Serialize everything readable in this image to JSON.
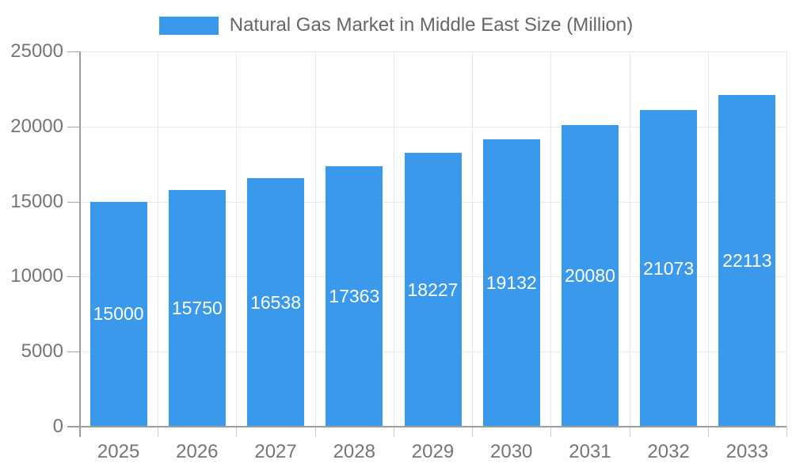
{
  "chart_data": {
    "type": "bar",
    "title": "Natural Gas Market in Middle East Size (Million)",
    "legend": {
      "position": "top",
      "label": "Natural Gas Market in Middle East Size (Million)"
    },
    "categories": [
      "2025",
      "2026",
      "2027",
      "2028",
      "2029",
      "2030",
      "2031",
      "2032",
      "2033"
    ],
    "series": [
      {
        "name": "Natural Gas Market in Middle East Size (Million)",
        "values": [
          15000,
          15750,
          16538,
          17363,
          18227,
          19132,
          20080,
          21073,
          22113
        ]
      }
    ],
    "xlabel": "",
    "ylabel": "",
    "ylim": [
      0,
      25000
    ],
    "yticks": [
      0,
      5000,
      10000,
      15000,
      20000,
      25000
    ],
    "grid": true,
    "bar_value_labels_shown": true,
    "colors": {
      "bar": "#3B99EC",
      "grid": "#E8E8E8",
      "axis": "#9E9E9E",
      "tick": "#A6A6A6",
      "tick2": "#CFCFCF",
      "text": "#757575",
      "title": "#666666",
      "bar_label": "#FFFFFF"
    }
  }
}
